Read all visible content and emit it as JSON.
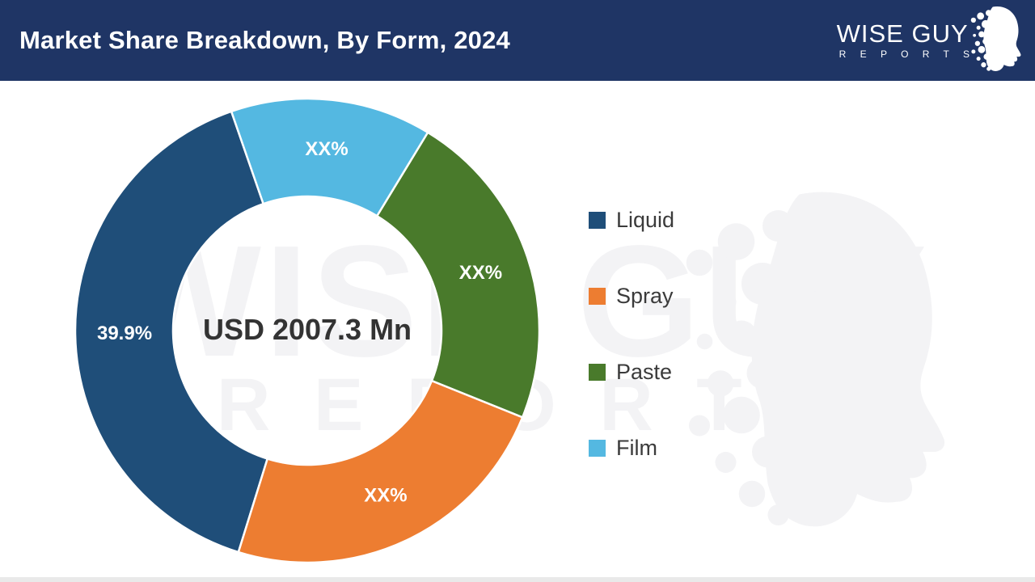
{
  "header": {
    "title": "Market Share Breakdown, By Form, 2024",
    "bg_color": "#1F3565",
    "logo": {
      "brand": "WISE GUY",
      "sub": "R E P O R T S"
    }
  },
  "watermark": {
    "line1": "WISE GUY",
    "line2": "R E P O R T S",
    "color": "#F3F3F5"
  },
  "chart_data": {
    "type": "pie",
    "variant": "donut",
    "title": "Market Share Breakdown, By Form, 2024",
    "center_label": "USD 2007.3 Mn",
    "legend_position": "right",
    "direction": "counterclockwise",
    "rotation_deg_clockwise_from_top": -19.1,
    "categories": [
      "Liquid",
      "Spray",
      "Paste",
      "Film"
    ],
    "series": [
      {
        "name": "Liquid",
        "display_label": "39.9%",
        "value_pct": 39.9,
        "color": "#1F4E79"
      },
      {
        "name": "Spray",
        "display_label": "XX%",
        "value_pct": 23.7,
        "color": "#ED7D31"
      },
      {
        "name": "Paste",
        "display_label": "XX%",
        "value_pct": 22.4,
        "color": "#497A2B"
      },
      {
        "name": "Film",
        "display_label": "XX%",
        "value_pct": 14.0,
        "color": "#54B8E1"
      }
    ],
    "geometry": {
      "outer_radius": 287,
      "inner_radius": 166,
      "label_radius": 226,
      "segment_gap_stroke": "#ffffff"
    }
  },
  "footer": {
    "strip_color": "#E9E9E9"
  }
}
